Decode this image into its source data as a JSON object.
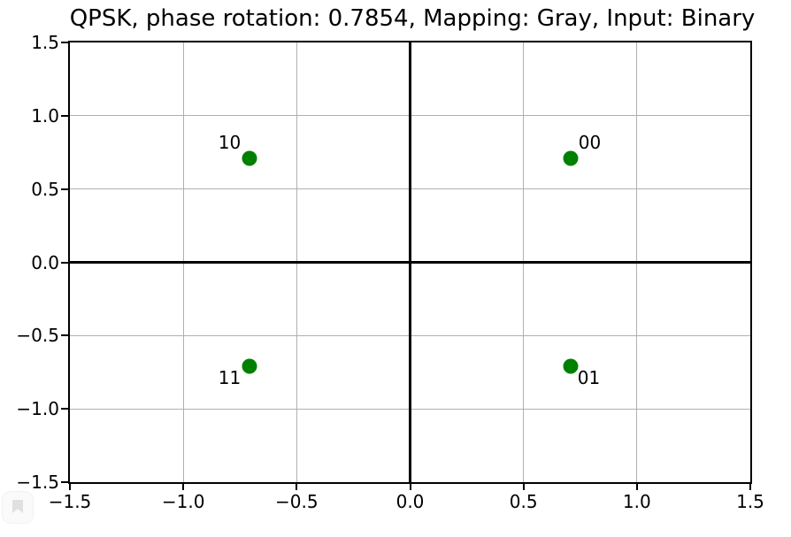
{
  "chart_data": {
    "type": "scatter",
    "title": "QPSK, phase rotation: 0.7854, Mapping: Gray, Input: Binary",
    "xlabel": "",
    "ylabel": "",
    "xlim": [
      -1.5,
      1.5
    ],
    "ylim": [
      -1.5,
      1.5
    ],
    "xticks": {
      "values": [
        -1.5,
        -1.0,
        -0.5,
        0.0,
        0.5,
        1.0,
        1.5
      ],
      "labels": [
        "−1.5",
        "−1.0",
        "−0.5",
        "0.0",
        "0.5",
        "1.0",
        "1.5"
      ]
    },
    "yticks": {
      "values": [
        -1.5,
        -1.0,
        -0.5,
        0.0,
        0.5,
        1.0,
        1.5
      ],
      "labels": [
        "−1.5",
        "−1.0",
        "−0.5",
        "0.0",
        "0.5",
        "1.0",
        "1.5"
      ]
    },
    "grid": true,
    "legend": "none",
    "colors": {
      "grid": "#b0b0b0",
      "spine": "#000000",
      "origin_axes": "#000000",
      "marker": "#008000",
      "text": "#000000"
    },
    "points": [
      {
        "label": "10",
        "x": -0.7071,
        "y": 0.7071,
        "label_side": "above-left"
      },
      {
        "label": "00",
        "x": 0.7071,
        "y": 0.7071,
        "label_side": "above-right"
      },
      {
        "label": "11",
        "x": -0.7071,
        "y": -0.7071,
        "label_side": "below-left"
      },
      {
        "label": "01",
        "x": 0.7071,
        "y": -0.7071,
        "label_side": "below-right"
      }
    ]
  },
  "overlay": {
    "bookmark_icon": "bookmark-icon"
  }
}
